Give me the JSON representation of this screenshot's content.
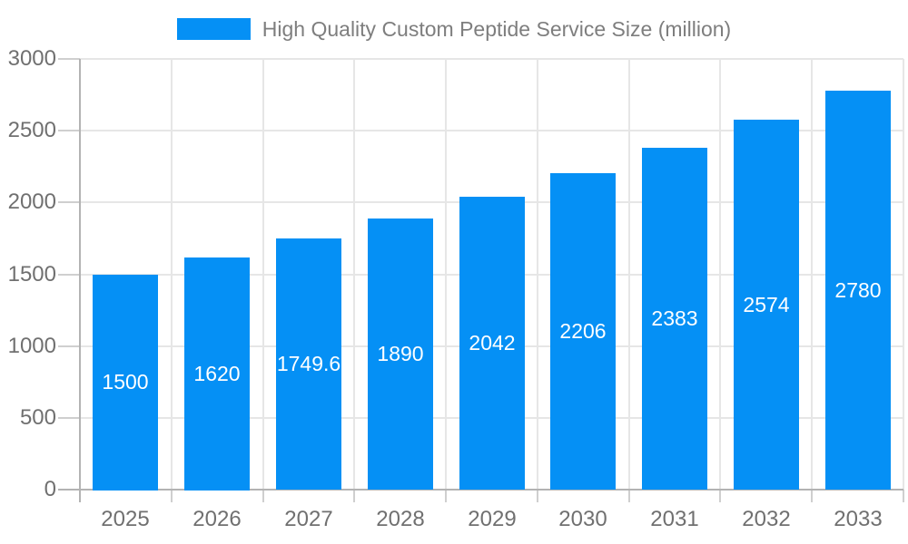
{
  "chart_data": {
    "type": "bar",
    "title": "High Quality Custom Peptide Service Size (million)",
    "categories": [
      "2025",
      "2026",
      "2027",
      "2028",
      "2029",
      "2030",
      "2031",
      "2032",
      "2033"
    ],
    "values": [
      1500,
      1620,
      1749.6,
      1890,
      2042,
      2206,
      2383,
      2574,
      2780
    ],
    "value_labels": [
      "1500",
      "1620",
      "1749.6",
      "1890",
      "2042",
      "2206",
      "2383",
      "2574",
      "2780"
    ],
    "xlabel": "",
    "ylabel": "",
    "ylim": [
      0,
      3000
    ],
    "ytick_step": 500,
    "yticks": [
      "0",
      "500",
      "1000",
      "1500",
      "2000",
      "2500",
      "3000"
    ],
    "grid": "on",
    "legend_position": "top"
  },
  "colors": {
    "bar": "#0590f5",
    "bar_label": "#ffffff",
    "grid": "#e6e6e6",
    "tick": "#cfcfcf",
    "axis_line": "#b3b3b3",
    "axis_text": "#707070",
    "legend_text": "#7e7e7e"
  }
}
